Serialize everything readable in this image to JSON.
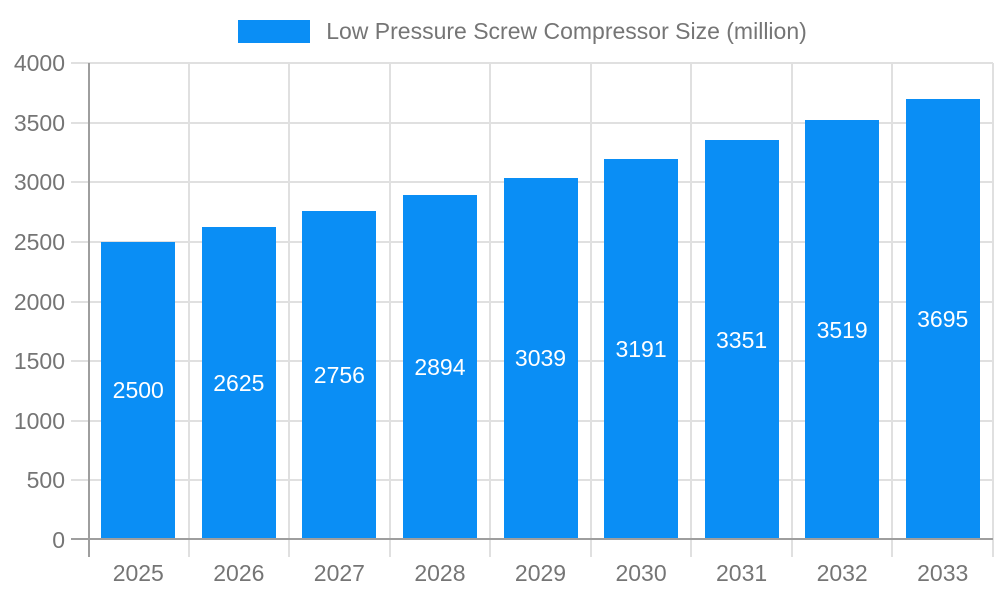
{
  "legend": {
    "label": "Low Pressure Screw Compressor Size (million)"
  },
  "colors": {
    "bar": "#0a8ef5",
    "bar_label": "#ffffff",
    "grid": "#e0e0e0",
    "axis": "#9e9e9e",
    "text": "#757575",
    "background": "#ffffff"
  },
  "chart_data": {
    "type": "bar",
    "title": "Low Pressure Screw Compressor Size (million)",
    "series_name": "Low Pressure Screw Compressor Size (million)",
    "categories": [
      "2025",
      "2026",
      "2027",
      "2028",
      "2029",
      "2030",
      "2031",
      "2032",
      "2033"
    ],
    "values": [
      2500,
      2625,
      2756,
      2894,
      3039,
      3191,
      3351,
      3519,
      3695
    ],
    "xlabel": "",
    "ylabel": "",
    "ylim": [
      0,
      4000
    ],
    "yticks": [
      0,
      500,
      1000,
      1500,
      2000,
      2500,
      3000,
      3500,
      4000
    ],
    "grid": true,
    "legend_position": "top",
    "bar_label_position": "inside-center"
  }
}
